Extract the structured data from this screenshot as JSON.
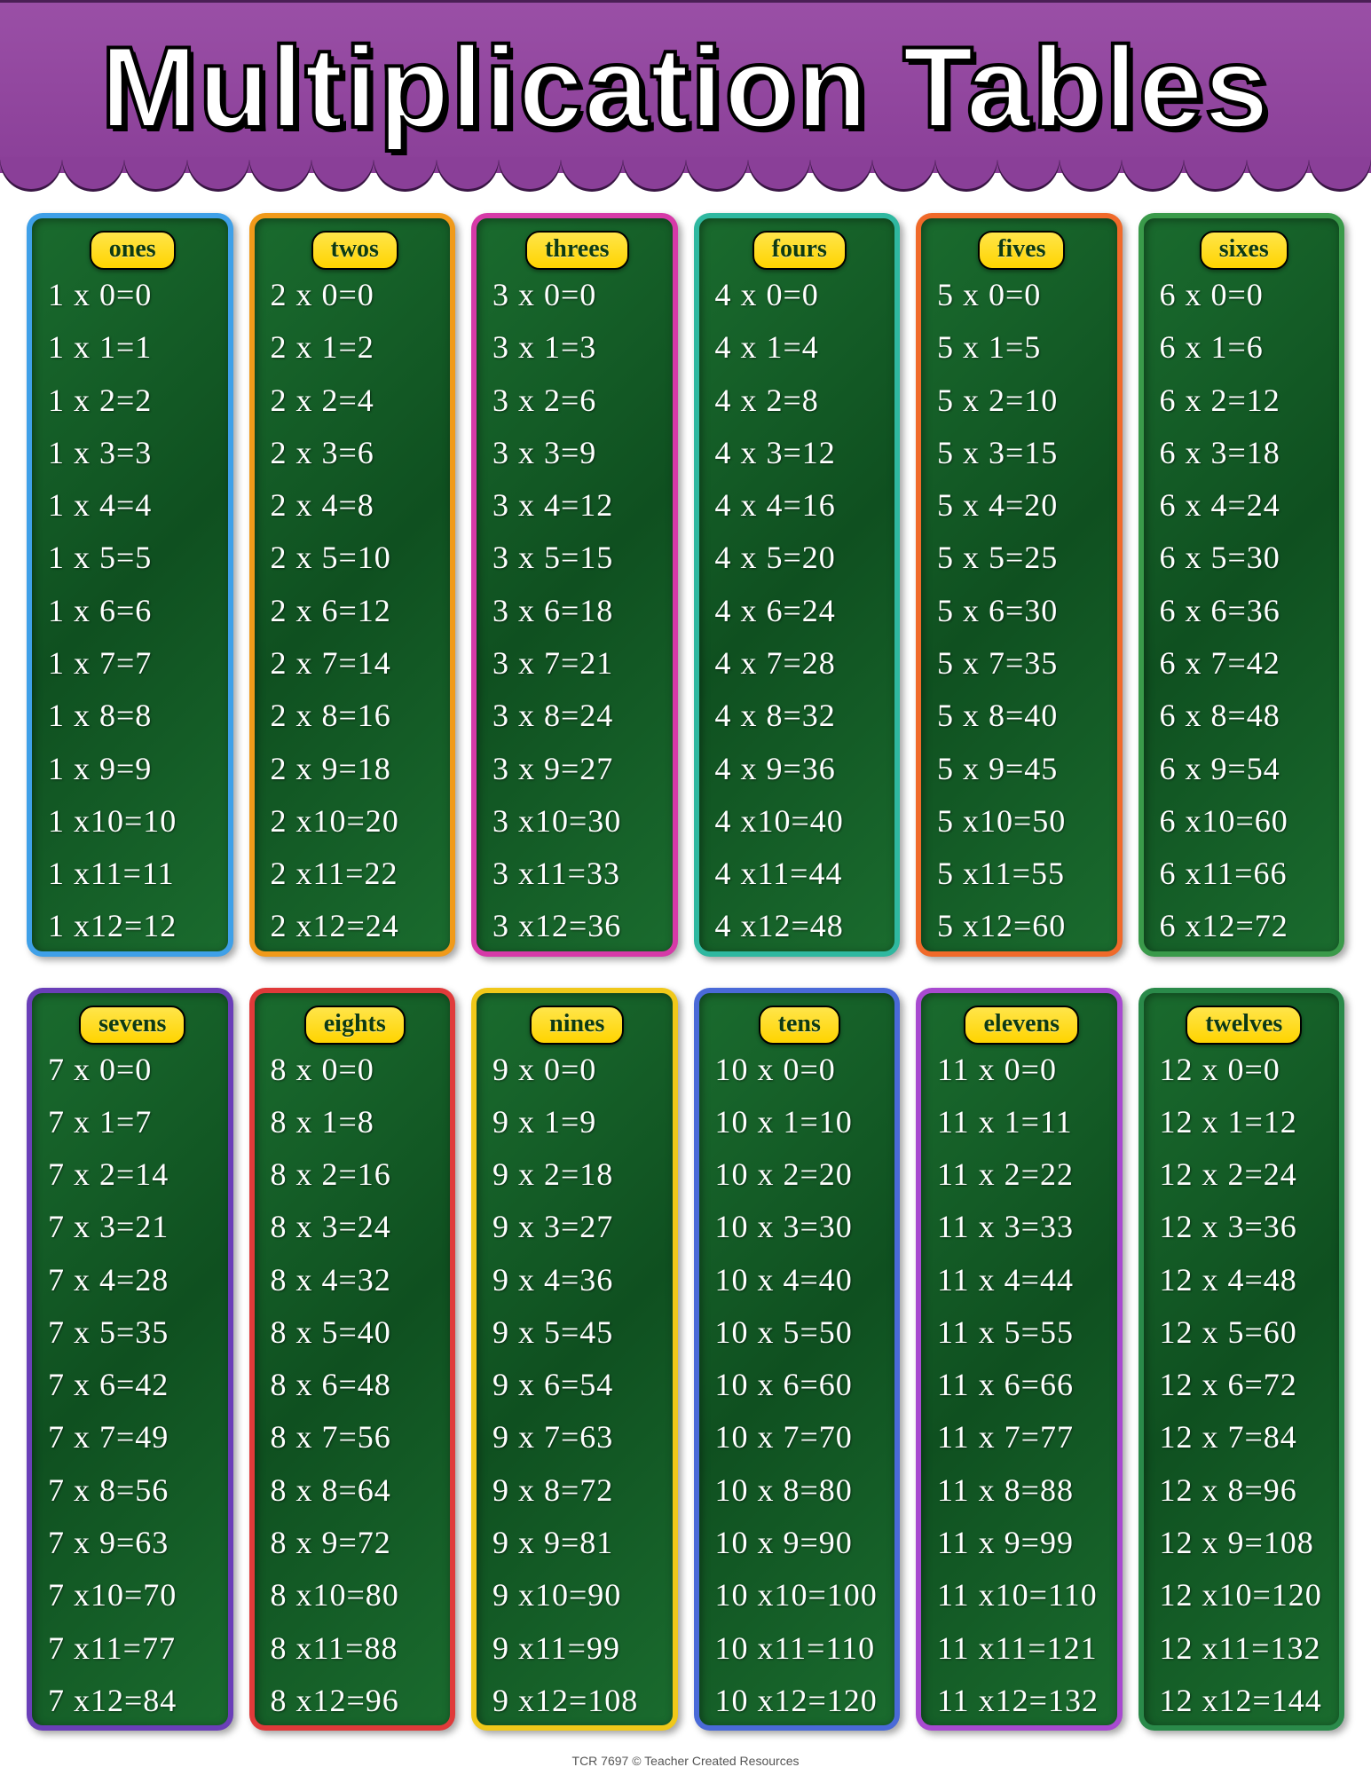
{
  "title": "Multiplication Tables",
  "header_bg_color": "#8a3f98",
  "chalkboard_color": "#15602a",
  "badge_bg": "#ffe54a",
  "badge_text_color": "#0e3a12",
  "eq_text_color": "#ffffff",
  "footer": "TCR 7697  © Teacher Created Resources",
  "tables": [
    {
      "label": "ones",
      "n": 1,
      "border": "#3fa0e8"
    },
    {
      "label": "twos",
      "n": 2,
      "border": "#f09a1a"
    },
    {
      "label": "threes",
      "n": 3,
      "border": "#d63aa8"
    },
    {
      "label": "fours",
      "n": 4,
      "border": "#2fb8a0"
    },
    {
      "label": "fives",
      "n": 5,
      "border": "#f06a2a"
    },
    {
      "label": "sixes",
      "n": 6,
      "border": "#3a9a4a"
    },
    {
      "label": "sevens",
      "n": 7,
      "border": "#6a3fb8"
    },
    {
      "label": "eights",
      "n": 8,
      "border": "#e03a3a"
    },
    {
      "label": "nines",
      "n": 9,
      "border": "#f0c81a"
    },
    {
      "label": "tens",
      "n": 10,
      "border": "#4a6ad8"
    },
    {
      "label": "elevens",
      "n": 11,
      "border": "#a84ad0"
    },
    {
      "label": "twelves",
      "n": 12,
      "border": "#2a8a4a"
    }
  ],
  "multipliers": [
    0,
    1,
    2,
    3,
    4,
    5,
    6,
    7,
    8,
    9,
    10,
    11,
    12
  ],
  "eq_fontsize": 36,
  "badge_fontsize": 28
}
